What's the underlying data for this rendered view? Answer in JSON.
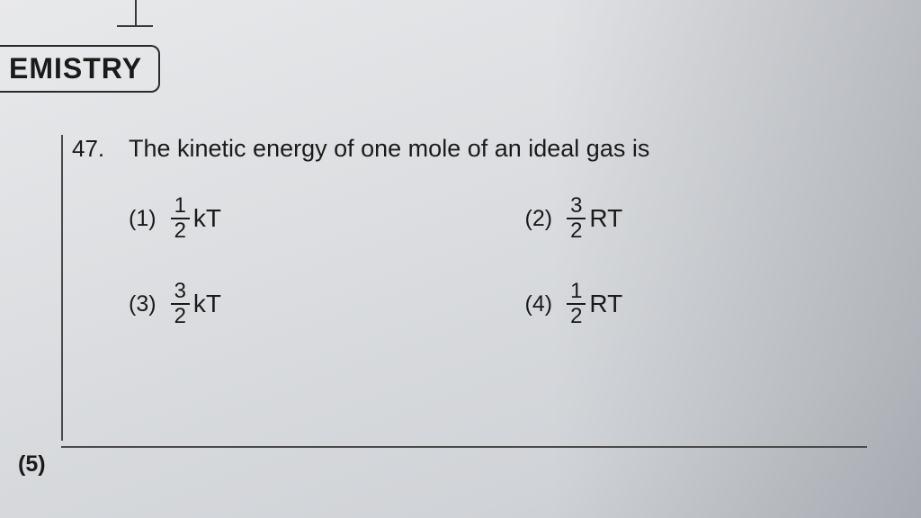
{
  "header": {
    "title": "EMISTRY"
  },
  "question": {
    "number": "47.",
    "text": "The kinetic energy of one mole of an ideal gas is"
  },
  "options": [
    {
      "num": "(1)",
      "frac_top": "1",
      "frac_bot": "2",
      "term": "kT"
    },
    {
      "num": "(2)",
      "frac_top": "3",
      "frac_bot": "2",
      "term": "RT"
    },
    {
      "num": "(3)",
      "frac_top": "3",
      "frac_bot": "2",
      "term": "kT"
    },
    {
      "num": "(4)",
      "frac_top": "1",
      "frac_bot": "2",
      "term": "RT"
    }
  ],
  "footer": {
    "label": "(5)"
  },
  "colors": {
    "text": "#1a1a1a",
    "rule": "#4a4a4a",
    "bg_light": "#e8e9eb",
    "bg_dark": "#c4c7cc"
  },
  "typography": {
    "header_fontsize": 32,
    "question_fontsize": 27,
    "option_fontsize": 26,
    "fraction_fontsize": 24
  }
}
